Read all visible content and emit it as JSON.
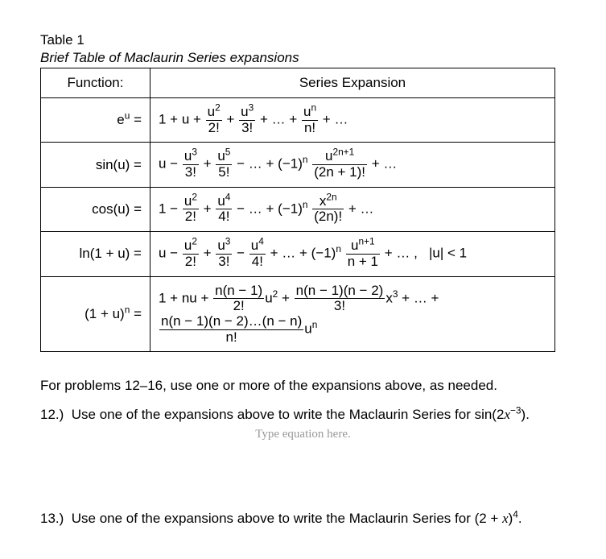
{
  "table": {
    "label": "Table 1",
    "caption": "Brief Table of Maclaurin Series expansions",
    "header_function": "Function:",
    "header_series": "Series Expansion",
    "rows": [
      {
        "fn_html": "e<sup>u</sup> =",
        "series_html": "1 + u + <span class='fr'><span class='num'>u<sup>2</sup></span><span class='den'>2!</span></span> + <span class='fr'><span class='num'>u<sup>3</sup></span><span class='den'>3!</span></span> + … + <span class='fr'><span class='num'>u<sup>n</sup></span><span class='den'>n!</span></span> + …"
      },
      {
        "fn_html": "sin(u) =",
        "series_html": "u − <span class='fr'><span class='num'>u<sup>3</sup></span><span class='den'>3!</span></span> + <span class='fr'><span class='num'>u<sup>5</sup></span><span class='den'>5!</span></span> − … + (−1)<sup>n</sup> <span class='fr'><span class='num'>u<sup>2n+1</sup></span><span class='den'>(2n + 1)!</span></span> + …"
      },
      {
        "fn_html": "cos(u) =",
        "series_html": "1 − <span class='fr'><span class='num'>u<sup>2</sup></span><span class='den'>2!</span></span> + <span class='fr'><span class='num'>u<sup>4</sup></span><span class='den'>4!</span></span> − … + (−1)<sup>n</sup> <span class='fr'><span class='num'>x<sup>2n</sup></span><span class='den'>(2n)!</span></span> + …"
      },
      {
        "fn_html": "ln(1 + u) =",
        "series_html": "u − <span class='fr'><span class='num'>u<sup>2</sup></span><span class='den'>2!</span></span> + <span class='fr'><span class='num'>u<sup>3</sup></span><span class='den'>3!</span></span> − <span class='fr'><span class='num'>u<sup>4</sup></span><span class='den'>4!</span></span> + … + (−1)<sup>n</sup> <span class='fr'><span class='num'>u<sup>n+1</sup></span><span class='den'>n + 1</span></span> + … ,&nbsp;&nbsp;&nbsp;|u| &lt; 1"
      },
      {
        "fn_html": "(1 + u)<sup>n</sup> =",
        "series_html": "1 + nu + <span class='fr'><span class='num'>n(n − 1)</span><span class='den'>2!</span></span>u<sup>2</sup> + <span class='fr'><span class='num'>n(n − 1)(n − 2)</span><span class='den'>3!</span></span>x<sup>3</sup> + … + <span class='fr'><span class='num'>n(n − 1)(n − 2)…(n − n)</span><span class='den'>n!</span></span>u<sup>n</sup>"
      }
    ]
  },
  "instructions": "For problems 12–16, use one or more of the expansions above, as needed.",
  "problem12": {
    "number": "12.)",
    "text_prefix": "Use one of the expansions above to write the Maclaurin Series for ",
    "expr_html": "sin(2<span class='serif-it'>x</span><sup>−3</sup>)",
    "placeholder": "Type equation here."
  },
  "problem13": {
    "number": "13.)",
    "text_prefix": "Use one of the expansions above to write the Maclaurin Series for ",
    "expr_html": "(2 + <span class='serif-it'>x</span>)<sup>4</sup>."
  }
}
